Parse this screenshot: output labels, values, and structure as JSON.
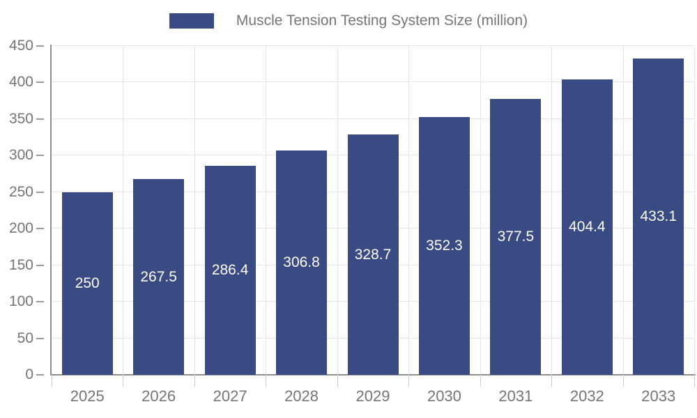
{
  "legend": {
    "label": "Muscle Tension Testing System Size (million)"
  },
  "chart_data": {
    "type": "bar",
    "title": "Muscle Tension Testing System Size (million)",
    "series_name": "Muscle Tension Testing System Size (million)",
    "categories": [
      "2025",
      "2026",
      "2027",
      "2028",
      "2029",
      "2030",
      "2031",
      "2032",
      "2033"
    ],
    "values": [
      250,
      267.5,
      286.4,
      306.8,
      328.7,
      352.3,
      377.5,
      404.4,
      433.1
    ],
    "data_labels": [
      "250",
      "267.5",
      "286.4",
      "306.8",
      "328.7",
      "352.3",
      "377.5",
      "404.4",
      "433.1"
    ],
    "xlabel": "",
    "ylabel": "",
    "ylim": [
      0,
      450
    ],
    "ytick_step": 50,
    "yticks": [
      0,
      50,
      100,
      150,
      200,
      250,
      300,
      350,
      400,
      450
    ],
    "grid": true,
    "legend_position": "top-center",
    "colors": {
      "bar": "#394B82",
      "bar_label": "#FFFFFF",
      "axis_line": "#8E8E8E",
      "grid_line": "#E4E4EA",
      "x_tick_line": "#C9C9C9",
      "y_tick_line": "#999999",
      "tick_label": "#757575",
      "legend_label": "#757575",
      "background": "#FFFFFF"
    }
  }
}
